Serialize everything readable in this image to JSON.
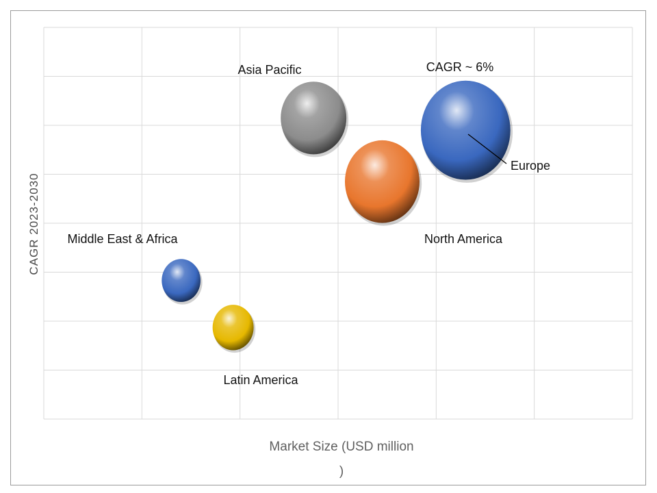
{
  "chart_data": {
    "type": "bubble",
    "xlabel_lines": [
      "Market Size (USD million",
      ")"
    ],
    "ylabel": "CAGR 2023-2030",
    "grid": true,
    "xlim": [
      0,
      6
    ],
    "ylim": [
      0,
      8
    ],
    "annotation": "CAGR ~ 6%",
    "series": [
      {
        "name": "Asia Pacific",
        "x": 2.75,
        "y": 6.15,
        "size": 0.88,
        "color": "#8c8c8c"
      },
      {
        "name": "North America",
        "x": 3.45,
        "y": 4.85,
        "size": 1.0,
        "color": "#e8762d"
      },
      {
        "name": "Europe",
        "x": 4.3,
        "y": 5.9,
        "size": 1.2,
        "color": "#3a68bf"
      },
      {
        "name": "Middle East & Africa",
        "x": 1.4,
        "y": 2.83,
        "size": 0.52,
        "color": "#3a68bf"
      },
      {
        "name": "Latin America",
        "x": 1.93,
        "y": 1.87,
        "size": 0.55,
        "color": "#e6b800"
      }
    ]
  }
}
